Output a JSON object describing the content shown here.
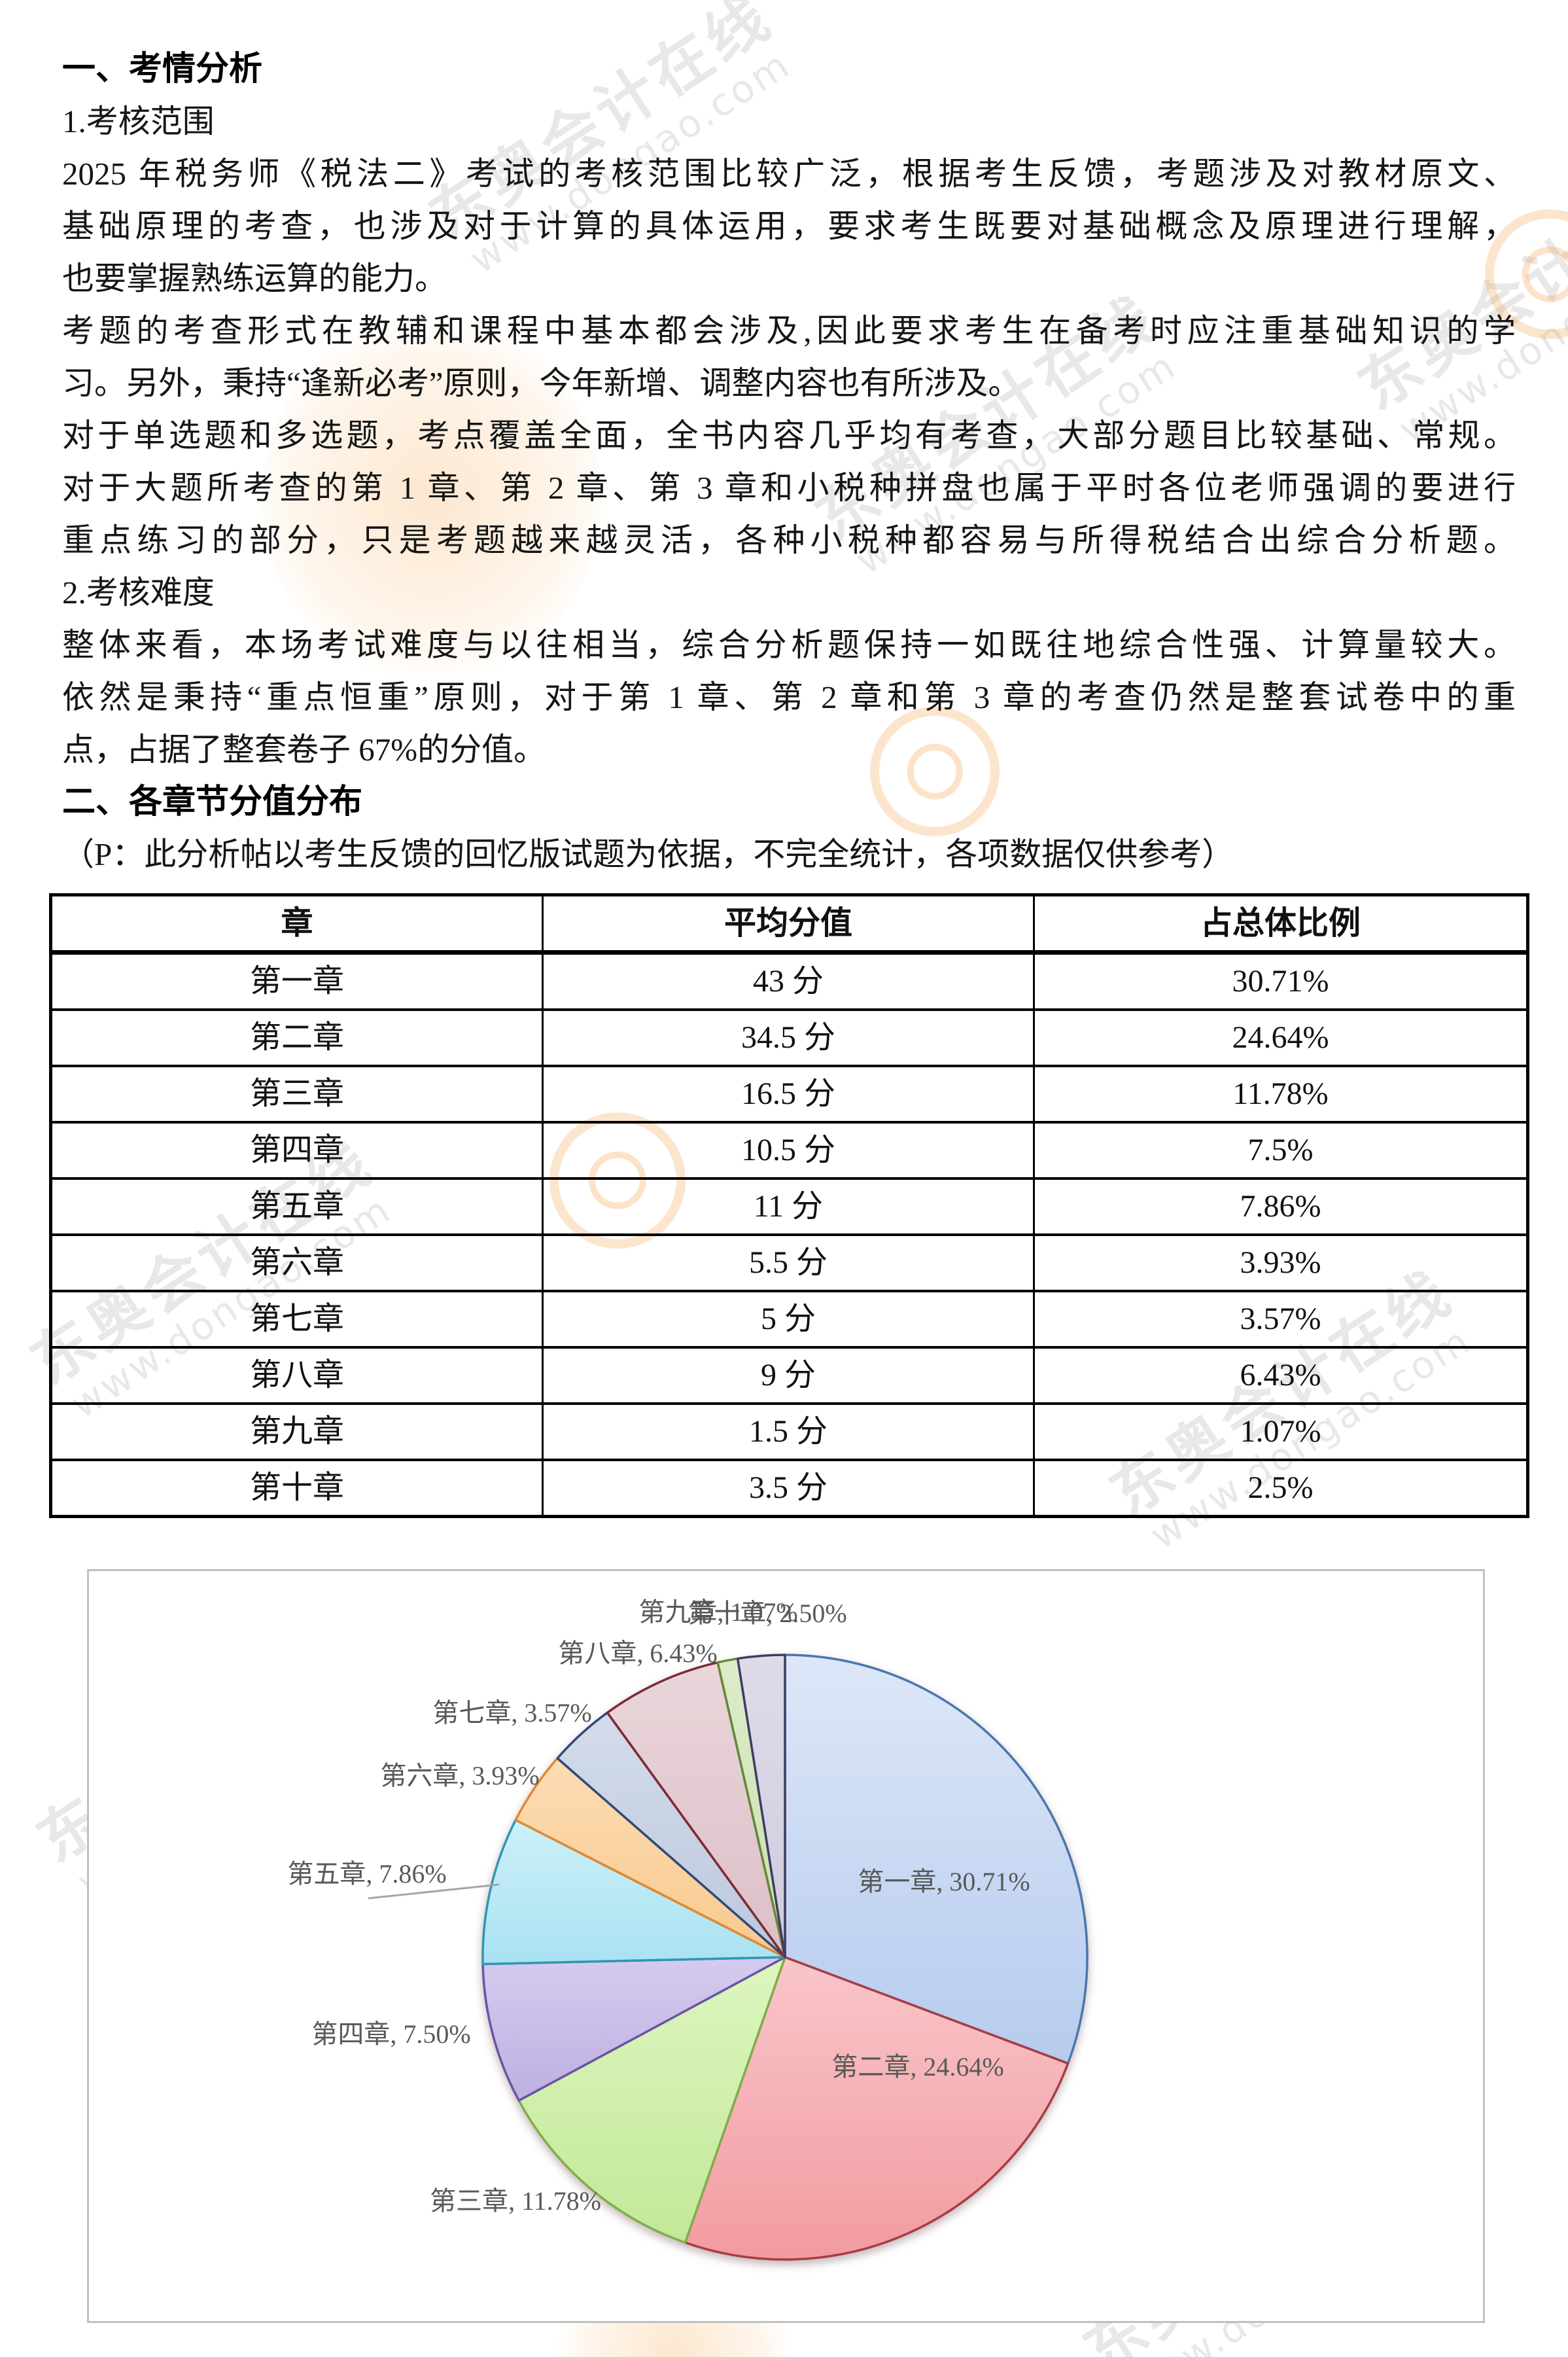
{
  "content": {
    "lines": [
      "一、考情分析",
      "1.考核范围",
      "2025 年税务师《税法二》考试的考核范围比较广泛，根据考生反馈，考题涉及对教材原文、",
      "基础原理的考查，也涉及对于计算的具体运用，要求考生既要对基础概念及原理进行理解，",
      "也要掌握熟练运算的能力。",
      "考题的考查形式在教辅和课程中基本都会涉及,因此要求考生在备考时应注重基础知识的学",
      "习。另外，秉持“逢新必考”原则，今年新增、调整内容也有所涉及。",
      "对于单选题和多选题，考点覆盖全面，全书内容几乎均有考查，大部分题目比较基础、常规。",
      "对于大题所考查的第 1 章、第 2 章、第 3 章和小税种拼盘也属于平时各位老师强调的要进行",
      "重点练习的部分，只是考题越来越灵活，各种小税种都容易与所得税结合出综合分析题。",
      "2.考核难度",
      "整体来看，本场考试难度与以往相当，综合分析题保持一如既往地综合性强、计算量较大。",
      "依然是秉持“重点恒重”原则，对于第 1 章、第 2 章和第 3 章的考查仍然是整套试卷中的重",
      "点，占据了整套卷子 67%的分值。",
      "二、各章节分值分布",
      "（P：此分析帖以考生反馈的回忆版试题为依据，不完全统计，各项数据仅供参考）"
    ]
  },
  "table": {
    "headers": [
      "章",
      "平均分值",
      "占总体比例"
    ],
    "rows": [
      [
        "第一章",
        "43 分",
        "30.71%"
      ],
      [
        "第二章",
        "34.5 分",
        "24.64%"
      ],
      [
        "第三章",
        "16.5 分",
        "11.78%"
      ],
      [
        "第四章",
        "10.5 分",
        "7.5%"
      ],
      [
        "第五章",
        "11 分",
        "7.86%"
      ],
      [
        "第六章",
        "5.5 分",
        "3.93%"
      ],
      [
        "第七章",
        "5 分",
        "3.57%"
      ],
      [
        "第八章",
        "9 分",
        "6.43%"
      ],
      [
        "第九章",
        "1.5 分",
        "1.07%"
      ],
      [
        "第十章",
        "3.5 分",
        "2.5%"
      ]
    ]
  },
  "chart_data": {
    "type": "pie",
    "title": "",
    "legend": "none",
    "categories": [
      "第一章",
      "第二章",
      "第三章",
      "第四章",
      "第五章",
      "第六章",
      "第七章",
      "第八章",
      "第九章",
      "第十章"
    ],
    "values": [
      30.71,
      24.64,
      11.78,
      7.5,
      7.86,
      3.93,
      3.57,
      6.43,
      1.07,
      2.5
    ],
    "percent_labels": [
      "30.71%",
      "24.64%",
      "11.78%",
      "7.50%",
      "7.86%",
      "3.93%",
      "3.57%",
      "6.43%",
      "1.07%",
      "2.50%"
    ],
    "label_color": "#595959",
    "fill_light": [
      "#dde7f8",
      "#f9c6c9",
      "#ddf6c0",
      "#d5cbee",
      "#ccf0f9",
      "#fcdcb4",
      "#d4dcea",
      "#e9d6da",
      "#dcecc9",
      "#dedbe9"
    ],
    "fill_base": [
      "#b6cbee",
      "#f29ba0",
      "#c3e898",
      "#beafe2",
      "#a9e2f2",
      "#f9c98e",
      "#bcc8dd",
      "#ddbfc7",
      "#cbe0ae",
      "#cfcbde"
    ],
    "stroke": [
      "#4a76ae",
      "#a83c44",
      "#7fae4a",
      "#6a54a4",
      "#2e98b0",
      "#e08830",
      "#2e4a78",
      "#7e2a34",
      "#66883a",
      "#3f3c64"
    ]
  },
  "watermark": {
    "brand": "东奥会计在线",
    "url": "www.dongao.com"
  }
}
